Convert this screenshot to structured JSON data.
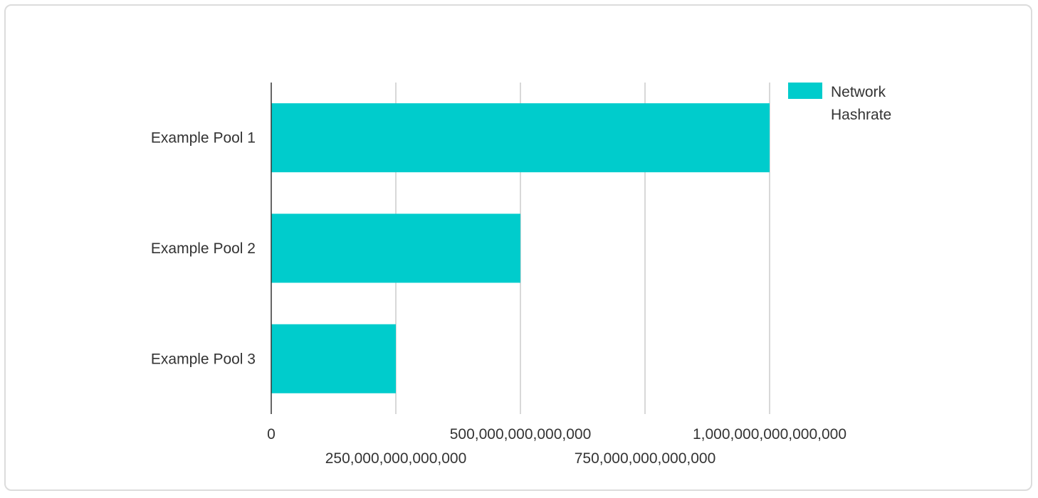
{
  "chart_data": {
    "type": "bar",
    "orientation": "horizontal",
    "title": "",
    "xlabel": "",
    "ylabel": "",
    "categories": [
      "Example Pool 1",
      "Example Pool 2",
      "Example Pool 3"
    ],
    "series": [
      {
        "name": "Network Hashrate",
        "values": [
          1000000000000000,
          500000000000000,
          250000000000000
        ],
        "color": "#00cccc"
      }
    ],
    "xlim": [
      0,
      1000000000000000
    ],
    "ticks": [
      {
        "value": 0,
        "label": "0"
      },
      {
        "value": 250000000000000,
        "label": "250,000,000,000,000"
      },
      {
        "value": 500000000000000,
        "label": "500,000,000,000,000"
      },
      {
        "value": 750000000000000,
        "label": "750,000,000,000,000"
      },
      {
        "value": 1000000000000000,
        "label": "1,000,000,000,000,000"
      }
    ],
    "grid": true,
    "legend": {
      "position": "top-right",
      "label_lines": [
        "Network",
        "Hashrate"
      ]
    },
    "colors": {
      "bar": "#00cccc",
      "grid": "#cccccc",
      "axis": "#333333",
      "text": "#333333",
      "border": "#dcdcdc"
    }
  }
}
